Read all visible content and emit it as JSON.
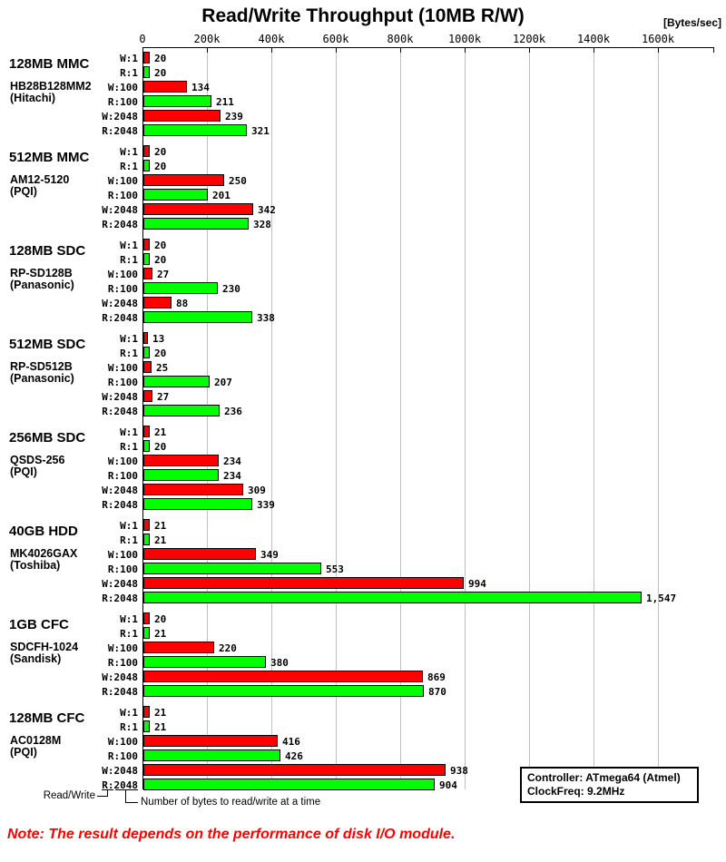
{
  "title": "Read/Write Throughput (10MB R/W)",
  "unit_label": "[Bytes/sec]",
  "colors": {
    "write_bar": "#ff0000",
    "read_bar": "#00ff00",
    "bar_border": "#000000",
    "gridline": "#c0c0c0",
    "note_text": "#ff0000"
  },
  "chart_data": {
    "type": "bar",
    "orientation": "horizontal",
    "title": "Read/Write Throughput (10MB R/W)",
    "xlabel": "[Bytes/sec]",
    "x_axis": {
      "tick_labels": [
        "0",
        "200k",
        "400k",
        "600k",
        "800k",
        "1000k",
        "1200k",
        "1400k",
        "1600k"
      ],
      "tick_values_k": [
        0,
        200,
        400,
        600,
        800,
        1000,
        1200,
        1400,
        1600
      ],
      "xlim_k": [
        0,
        1775
      ],
      "grid": true
    },
    "value_note": "bar values are in kBytes/sec (k = 1000 Bytes/sec)",
    "row_labels": [
      "W:1",
      "R:1",
      "W:100",
      "R:100",
      "W:2048",
      "R:2048"
    ],
    "series_colors": {
      "W": "#ff0000",
      "R": "#00ff00"
    },
    "groups": [
      {
        "size": "128MB MMC",
        "model": "HB28B128MM2",
        "maker": "(Hitachi)",
        "values": [
          20,
          20,
          134,
          211,
          239,
          321
        ]
      },
      {
        "size": "512MB MMC",
        "model": "AM12-5120",
        "maker": "(PQI)",
        "values": [
          20,
          20,
          250,
          201,
          342,
          328
        ]
      },
      {
        "size": "128MB SDC",
        "model": "RP-SD128B",
        "maker": "(Panasonic)",
        "values": [
          20,
          20,
          27,
          230,
          88,
          338
        ]
      },
      {
        "size": "512MB SDC",
        "model": "RP-SD512B",
        "maker": "(Panasonic)",
        "values": [
          13,
          20,
          25,
          207,
          27,
          236
        ]
      },
      {
        "size": "256MB SDC",
        "model": "QSDS-256",
        "maker": "(PQI)",
        "values": [
          21,
          20,
          234,
          234,
          309,
          339
        ]
      },
      {
        "size": "40GB HDD",
        "model": "MK4026GAX",
        "maker": "(Toshiba)",
        "values": [
          21,
          21,
          349,
          553,
          994,
          1547
        ]
      },
      {
        "size": "1GB CFC",
        "model": "SDCFH-1024",
        "maker": "(Sandisk)",
        "values": [
          20,
          21,
          220,
          380,
          869,
          870
        ]
      },
      {
        "size": "128MB CFC",
        "model": "AC0128M",
        "maker": "(PQI)",
        "values": [
          21,
          21,
          416,
          426,
          938,
          904
        ]
      }
    ]
  },
  "legend": {
    "read_write": "Read/Write",
    "bytes_at_a_time": "Number of bytes to read/write at a time"
  },
  "info_box": {
    "line1": "Controller: ATmega64 (Atmel)",
    "line2": "ClockFreq: 9.2MHz"
  },
  "note": "Note: The result depends on the performance of disk I/O module."
}
